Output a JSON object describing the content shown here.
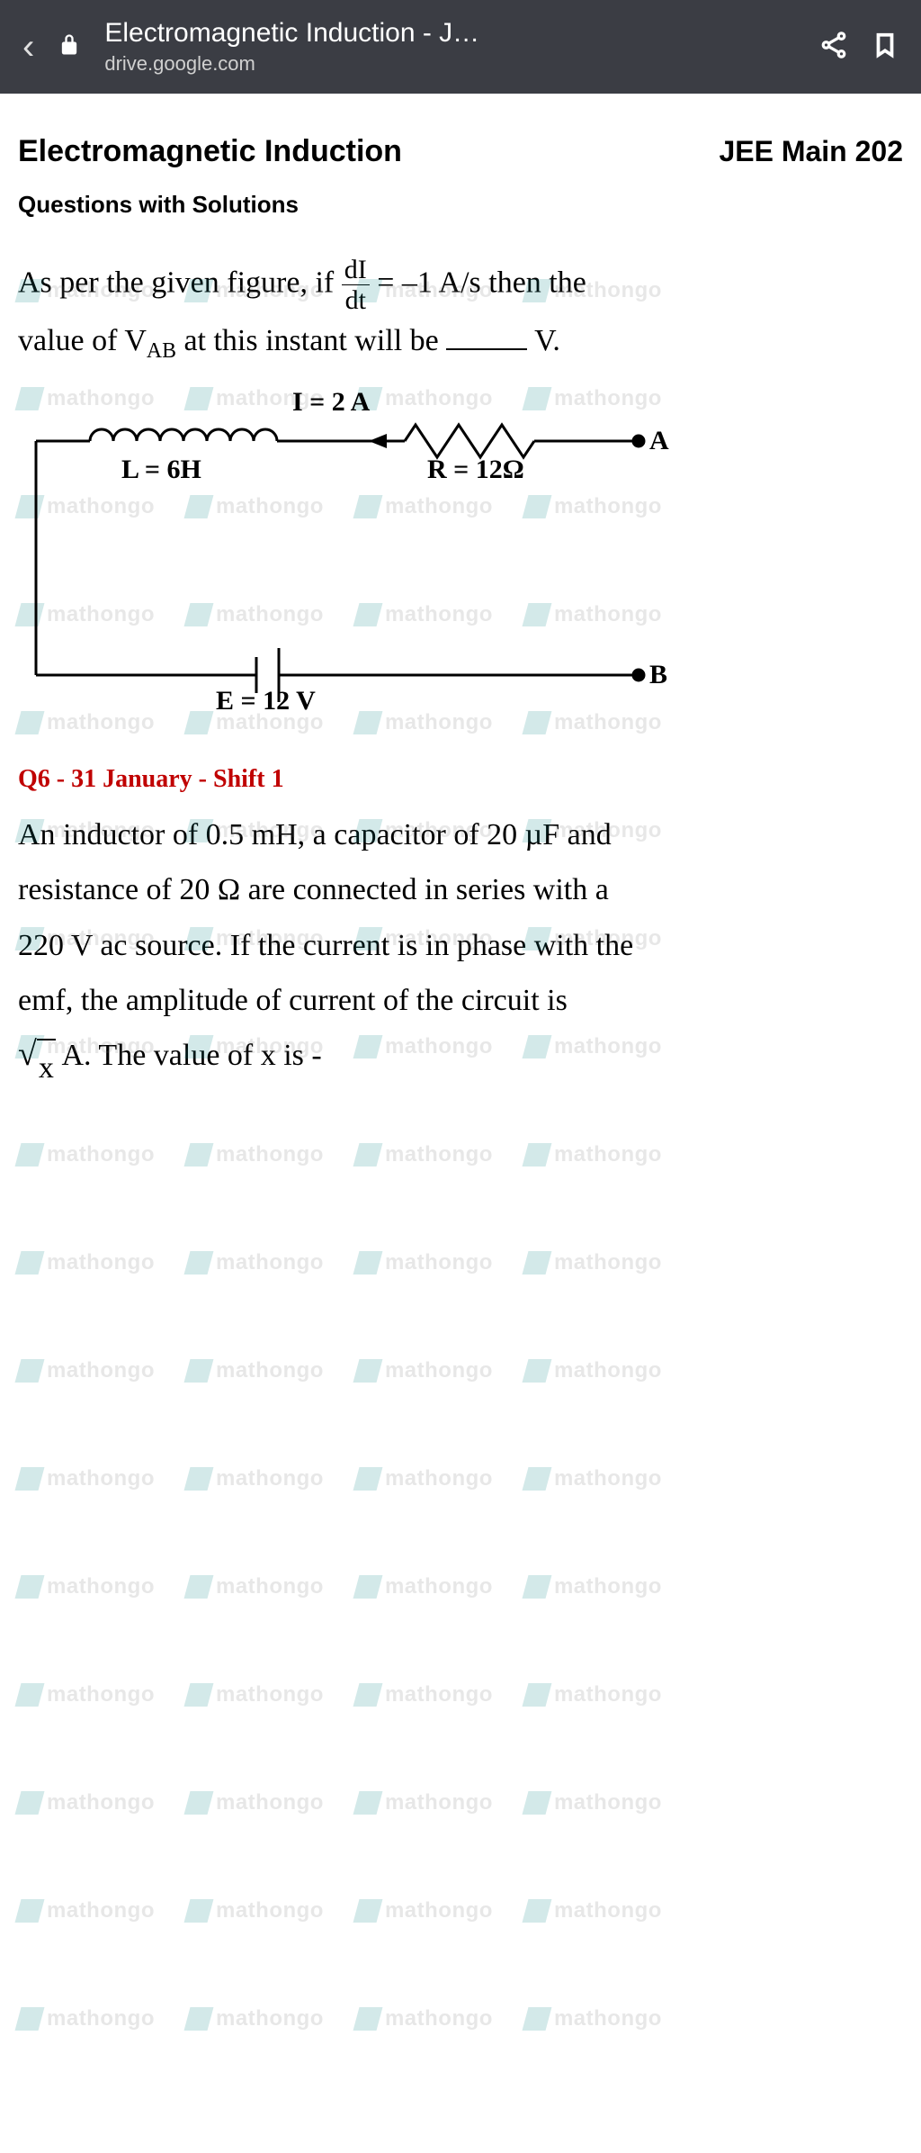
{
  "topbar": {
    "title": "Electromagnetic Induction - J…",
    "url": "drive.google.com"
  },
  "doc": {
    "title": "Electromagnetic Induction",
    "right": "JEE Main 202",
    "sub": "Questions with Solutions"
  },
  "q5": {
    "pre": "As per the given figure, if ",
    "frac_num": "dI",
    "frac_den": "dt",
    "mid": " = –1 A/s  then the",
    "line2_pre": "value of V",
    "line2_sub": "AB",
    "line2_post": " at this instant will be ",
    "line2_end": " V."
  },
  "circuit": {
    "I": "I = 2 A",
    "L": "L = 6H",
    "R": "R = 12Ω",
    "A": "A",
    "B": "B",
    "E": "E = 12 V",
    "line_color": "#000000",
    "line_width": 3
  },
  "q6": {
    "label": "Q6 - 31 January - Shift 1",
    "line1": "An inductor of 0.5 mH, a capacitor of 20 µF and",
    "line2": "resistance of 20 Ω are connected in series with a",
    "line3": "220 V ac source. If the current is in phase with the",
    "line4": "emf, the amplitude of current of the circuit is",
    "sqrt_arg": "x",
    "line5_post": " A. The value of x is -"
  },
  "watermark": {
    "text": "mathongo",
    "rows": 18,
    "cols": 4
  },
  "colors": {
    "topbar_bg": "#3b3d44",
    "q6_label": "#c00000",
    "wm_icon": "#008080"
  }
}
